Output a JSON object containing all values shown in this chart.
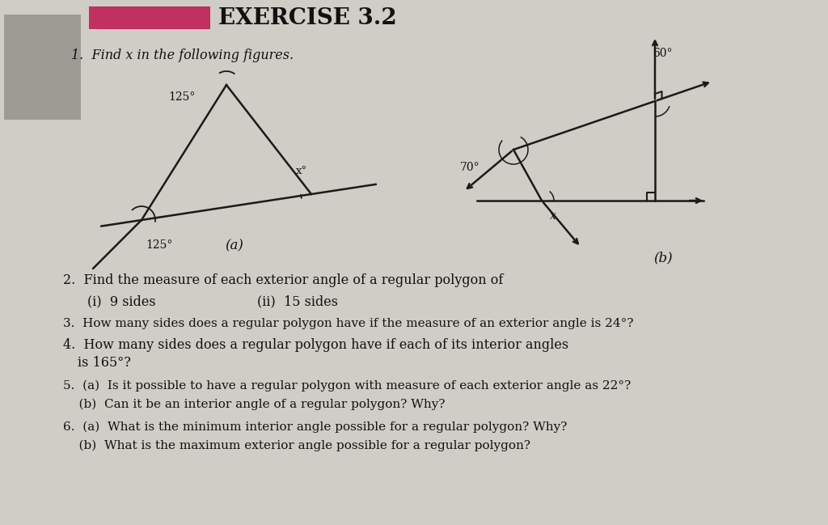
{
  "bg_color": "#d0ccc6",
  "title_box_color": "#c03060",
  "title_text": "EXERCISE 3.2",
  "q1_text": "1.  Find x in the following figures.",
  "fig_a_label": "(a)",
  "fig_b_label": "(b)",
  "angle_125_top": "125°",
  "angle_125_bot": "125°",
  "angle_x_a": "x°",
  "angle_70": "70°",
  "angle_60": "60°",
  "angle_x_b": "x",
  "q2_text": "2.  Find the measure of each exterior angle of a regular polygon of",
  "q2i_text": "(i)  9 sides",
  "q2ii_text": "(ii)  15 sides",
  "q3_text": "3.  How many sides does a regular polygon have if the measure of an exterior angle is 24°?",
  "q4_line1": "4.  How many sides does a regular polygon have if each of its interior angles",
  "q4_line2": "    is 165°?",
  "q5a_text": "5.  (a)  Is it possible to have a regular polygon with measure of each exterior angle as 22°?",
  "q5b_text": "    (b)  Can it be an interior angle of a regular polygon? Why?",
  "q6a_text": "6.  (a)  What is the minimum interior angle possible for a regular polygon? Why?",
  "q6b_text": "    (b)  What is the maximum exterior angle possible for a regular polygon?"
}
